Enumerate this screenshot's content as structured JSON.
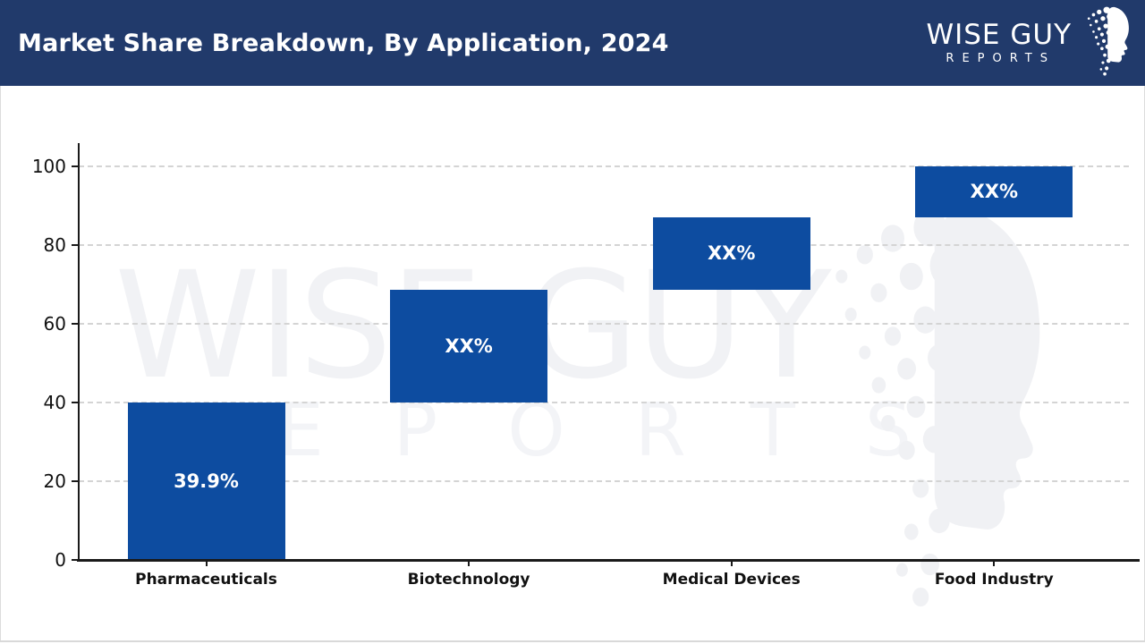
{
  "header": {
    "title": "Market Share Breakdown, By Application, 2024",
    "bg_color": "#213a6b",
    "logo_line1": "WISE GUY",
    "logo_line2": "REPORTS"
  },
  "watermark": {
    "line1": "WISE GUY",
    "line2": "REPORTS"
  },
  "chart_data": {
    "type": "bar",
    "subtype": "waterfall-segments",
    "title": "Market Share Breakdown, By Application, 2024",
    "categories": [
      "Pharmaceuticals",
      "Biotechnology",
      "Medical Devices",
      "Food Industry"
    ],
    "segments": [
      {
        "category": "Pharmaceuticals",
        "start": 0,
        "end": 39.9,
        "label": "39.9%"
      },
      {
        "category": "Biotechnology",
        "start": 39.9,
        "end": 68.6,
        "label": "XX%"
      },
      {
        "category": "Medical Devices",
        "start": 68.6,
        "end": 87.1,
        "label": "XX%"
      },
      {
        "category": "Food Industry",
        "start": 87.1,
        "end": 100,
        "label": "XX%"
      }
    ],
    "bar_color": "#0d4ca0",
    "bar_label_color": "#ffffff",
    "yticks": [
      0,
      20,
      40,
      60,
      80,
      100
    ],
    "ylim": [
      0,
      104.5
    ],
    "grid": {
      "horizontal": true,
      "style": "dashed",
      "color": "#d4d4d4"
    },
    "legend": null
  }
}
